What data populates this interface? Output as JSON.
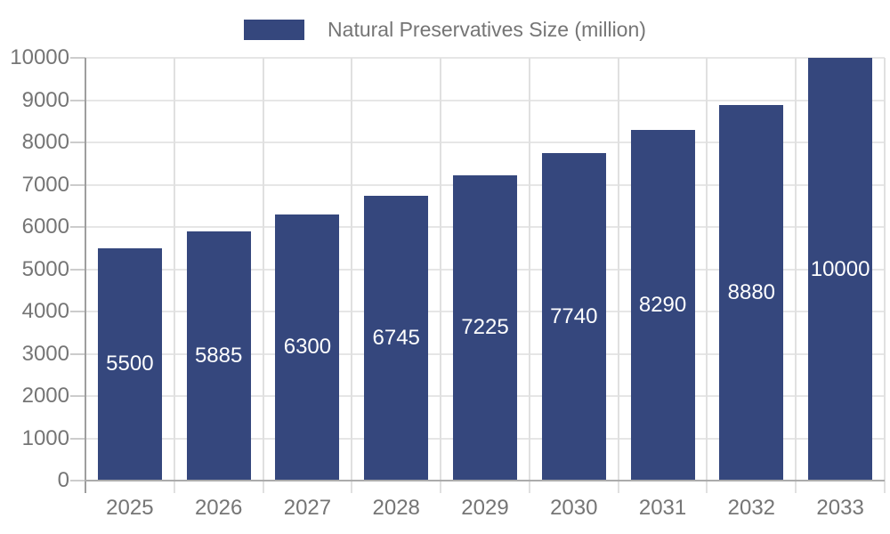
{
  "chart_data": {
    "type": "bar",
    "title": "Natural Preservatives Size (million)",
    "legend": [
      "Natural Preservatives Size (million)"
    ],
    "legend_position": "top",
    "categories": [
      "2025",
      "2026",
      "2027",
      "2028",
      "2029",
      "2030",
      "2031",
      "2032",
      "2033"
    ],
    "series": [
      {
        "name": "Natural Preservatives Size (million)",
        "values": [
          5500,
          5885,
          6300,
          6745,
          7225,
          7740,
          8290,
          8880,
          10000
        ]
      }
    ],
    "bar_value_labels": [
      "5500",
      "5885",
      "6300",
      "6745",
      "7225",
      "7740",
      "8290",
      "8880",
      "10000"
    ],
    "xlabel": "",
    "ylabel": "",
    "ylim": [
      0,
      10000
    ],
    "y_ticks": [
      0,
      1000,
      2000,
      3000,
      4000,
      5000,
      6000,
      7000,
      8000,
      9000,
      10000
    ],
    "grid": true
  },
  "colors": {
    "bar_fill": "#35477d",
    "bar_label": "#ffffff",
    "axis_text": "#757575",
    "grid_line": "#e6e6e6",
    "grid_line_vertical": "#e0e0e0",
    "y_axis_line": "#9e9e9e",
    "x_axis_line": "#ababab",
    "y_tick_line": "#cccccc",
    "background": "#ffffff"
  }
}
